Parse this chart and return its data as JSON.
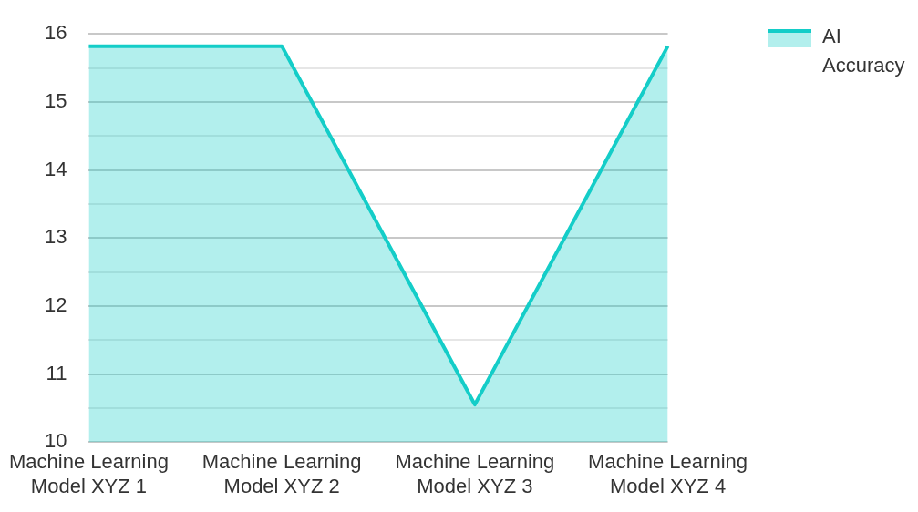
{
  "chart_data": {
    "type": "area",
    "categories": [
      "Machine Learning Model XYZ 1",
      "Machine Learning Model XYZ 2",
      "Machine Learning Model XYZ 3",
      "Machine Learning Model XYZ 4"
    ],
    "series": [
      {
        "name": "AI Accuracy",
        "color": "#14cdc8",
        "values": [
          15.82,
          15.82,
          10.55,
          15.82
        ]
      }
    ],
    "ylim": [
      10,
      16
    ],
    "yticks": [
      10,
      {
        "value": 10.5,
        "label": null
      },
      11,
      {
        "value": 11.5,
        "label": null
      },
      12,
      {
        "value": 12.5,
        "label": null
      },
      13,
      {
        "value": 13.5,
        "label": null
      },
      14,
      {
        "value": 14.5,
        "label": null
      },
      15,
      {
        "value": 15.5,
        "label": null
      },
      16
    ],
    "grid": "y",
    "legend": "top right",
    "marker": "none",
    "line_style": "solid"
  }
}
